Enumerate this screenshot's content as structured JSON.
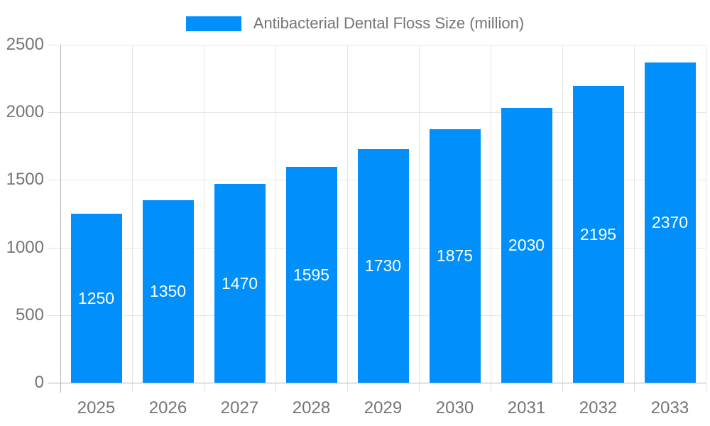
{
  "legend": {
    "items": [
      {
        "label": "Antibacterial Dental Floss Size (million)",
        "color": "#008FFB"
      }
    ]
  },
  "chart_data": {
    "type": "bar",
    "title": "Antibacterial Dental Floss Size (million)",
    "series_name": "Antibacterial Dental Floss Size (million)",
    "categories": [
      "2025",
      "2026",
      "2027",
      "2028",
      "2029",
      "2030",
      "2031",
      "2032",
      "2033"
    ],
    "values": [
      1250,
      1350,
      1470,
      1595,
      1730,
      1875,
      2030,
      2195,
      2370
    ],
    "xlabel": "",
    "ylabel": "",
    "ylim": [
      0,
      2500
    ],
    "yticks": [
      0,
      500,
      1000,
      1500,
      2000,
      2500
    ],
    "grid": true,
    "legend_position": "top",
    "value_labels_inside_bars": true,
    "colors": {
      "bar": "#008FFB",
      "value_label_text": "#FFFFFF",
      "axis_label_text": "#757575",
      "legend_text": "#757575",
      "gridline": "#E6E6E6",
      "tick": "#E0E0E0",
      "axis_line": "#B3B3B3",
      "background": "#FFFFFF"
    }
  }
}
